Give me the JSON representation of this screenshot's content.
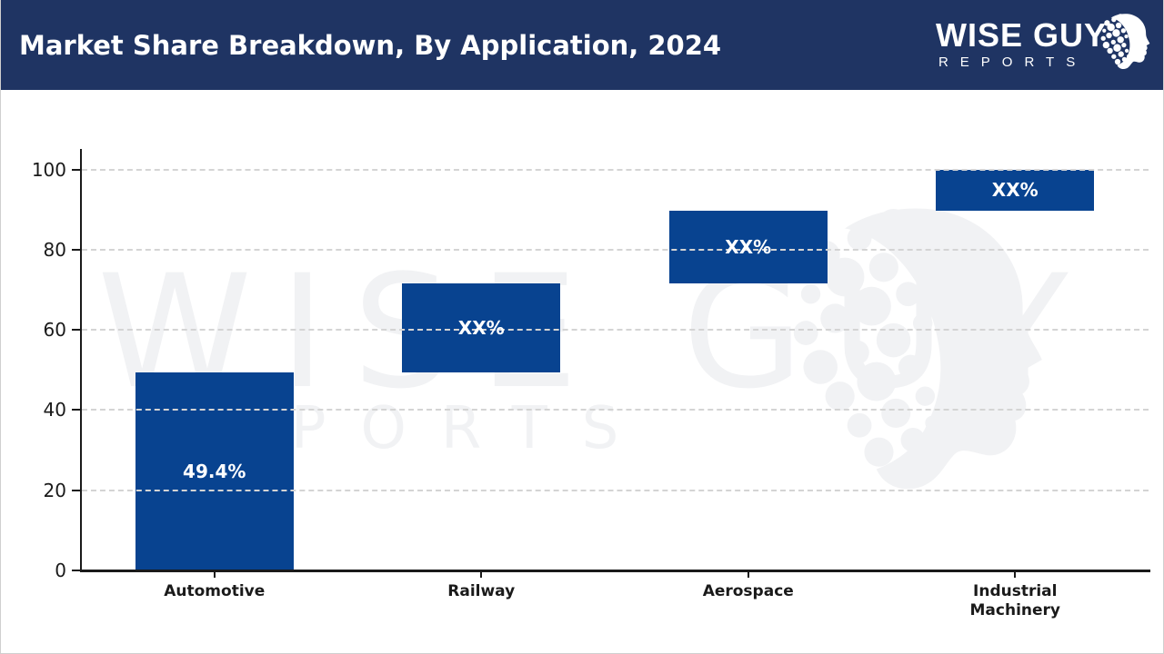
{
  "header": {
    "title": "Market Share Breakdown, By Application, 2024",
    "logo": {
      "wordmark": "WISE GUY",
      "subtitle": "REPORTS"
    }
  },
  "watermark": {
    "line1": "WISE GUY",
    "line2": "REPORTS"
  },
  "chart_data": {
    "type": "bar",
    "subtype": "waterfall",
    "title": "Market Share Breakdown, By Application, 2024",
    "categories": [
      "Automotive",
      "Railway",
      "Aerospace",
      "Industrial Machinery"
    ],
    "segments": [
      {
        "category": "Automotive",
        "start": 0,
        "end": 49.4,
        "label": "49.4%"
      },
      {
        "category": "Railway",
        "start": 49.4,
        "end": 71.6,
        "label": "XX%"
      },
      {
        "category": "Aerospace",
        "start": 71.6,
        "end": 89.8,
        "label": "XX%"
      },
      {
        "category": "Industrial Machinery",
        "start": 89.8,
        "end": 100,
        "label": "XX%"
      }
    ],
    "xlabel": "",
    "ylabel": "",
    "ylim": [
      0,
      105
    ],
    "yticks": [
      0,
      20,
      40,
      60,
      80,
      100
    ],
    "grid": {
      "axis": "y",
      "style": "dashed",
      "drawn_above_bars": true
    },
    "legend": "none"
  },
  "colors": {
    "header_bg": "#1f3463",
    "title_text": "#ffffff",
    "bar_fill": "#084390",
    "bar_label": "#ffffff",
    "grid_line": "#d4d4d4",
    "axis_line": "#1a1a1a",
    "tick_label": "#1a1a1a",
    "watermark": "#f1f2f4",
    "page_bg": "#ffffff",
    "page_border": "#cfcfcf"
  }
}
